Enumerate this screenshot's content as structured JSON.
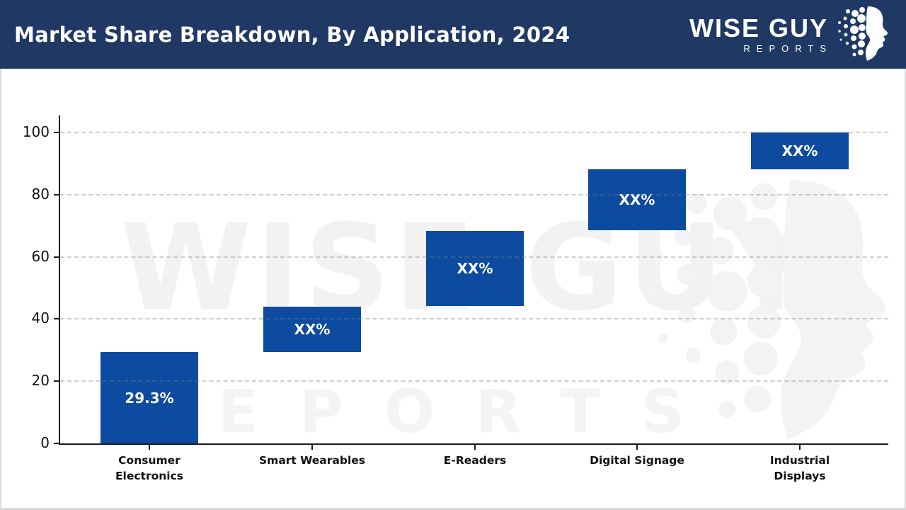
{
  "header": {
    "title": "Market Share Breakdown, By Application, 2024",
    "logo": {
      "line1": "WISE GUY",
      "line2": "REPORTS"
    }
  },
  "watermark": {
    "line1": "WISE GUY",
    "line2": "REPORTS"
  },
  "chart_data": {
    "type": "bar",
    "subtype": "waterfall",
    "title": "Market Share Breakdown, By Application, 2024",
    "categories": [
      "Consumer Electronics",
      "Smart Wearables",
      "E-Readers",
      "Digital Signage",
      "Industrial Displays"
    ],
    "tick_labels": [
      "Consumer\nElectronics",
      "Smart Wearables",
      "E-Readers",
      "Digital Signage",
      "Industrial\nDisplays"
    ],
    "segments": [
      {
        "category": "Consumer Electronics",
        "from": 0,
        "to": 29.3,
        "label": "29.3%"
      },
      {
        "category": "Smart Wearables",
        "from": 29.3,
        "to": 44.0,
        "label": "XX%"
      },
      {
        "category": "E-Readers",
        "from": 44.2,
        "to": 68.3,
        "label": "XX%"
      },
      {
        "category": "Digital Signage",
        "from": 68.6,
        "to": 88.2,
        "label": "XX%"
      },
      {
        "category": "Industrial Displays",
        "from": 88.2,
        "to": 100,
        "label": "XX%"
      }
    ],
    "values": [
      29.3,
      14.7,
      24.1,
      19.6,
      11.8
    ],
    "ylim": [
      0,
      100
    ],
    "yticks": [
      0,
      20,
      40,
      60,
      80,
      100
    ],
    "grid": "dashed-horizontal",
    "legend": "none",
    "colors": {
      "bar": "#0c4ba0",
      "bar_label": "#ffffff",
      "axis": "#1a1a1a",
      "header_bg": "#1f3864",
      "watermark": "#f2f2f4"
    }
  }
}
